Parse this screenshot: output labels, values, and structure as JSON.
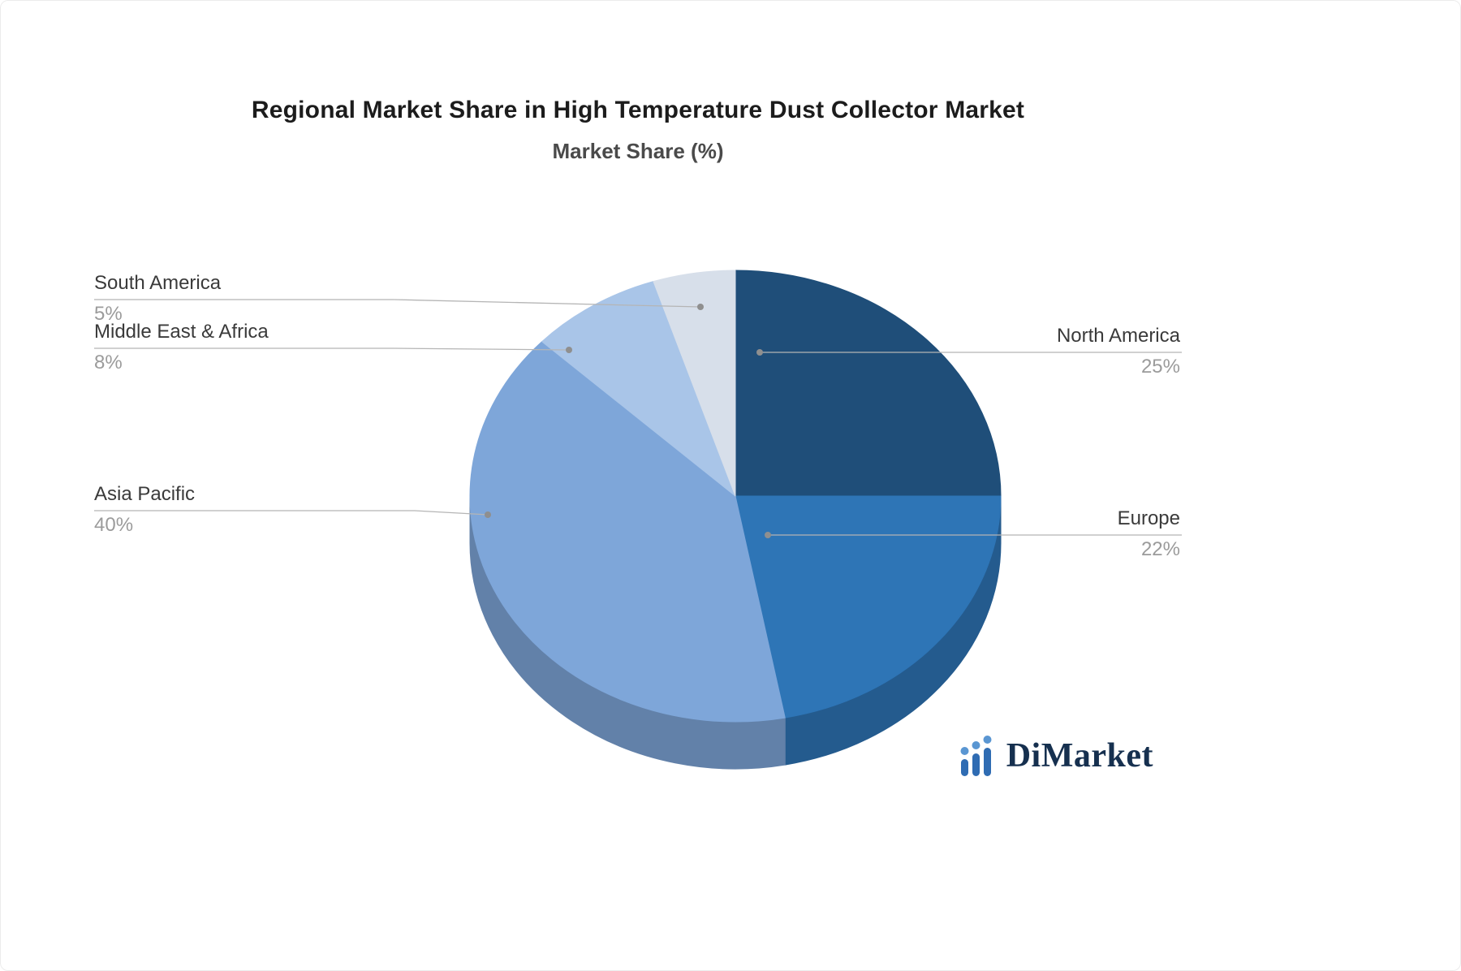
{
  "header": {
    "title": "Regional Market Share in High Temperature Dust Collector Market",
    "subtitle": "Market Share (%)"
  },
  "brand": {
    "name": "DiMarket",
    "icon": "bar-chart-logo-icon",
    "icon_color": "#2f6cb3",
    "text_color": "#16304f"
  },
  "chart_data": {
    "type": "pie",
    "style": "3d",
    "title": "Regional Market Share in High Temperature Dust Collector Market",
    "subtitle": "Market Share (%)",
    "unit": "%",
    "direction": "clockwise",
    "start_angle_deg": 0,
    "legend_position": "callout-labels",
    "series": [
      {
        "name": "North America",
        "value": 25,
        "label": "25%",
        "color": "#1F4E79"
      },
      {
        "name": "Europe",
        "value": 22,
        "label": "22%",
        "color": "#2E75B6"
      },
      {
        "name": "Asia Pacific",
        "value": 40,
        "label": "40%",
        "color": "#7EA6D9"
      },
      {
        "name": "Middle East & Africa",
        "value": 8,
        "label": "8%",
        "color": "#A9C5E8"
      },
      {
        "name": "South America",
        "value": 5,
        "label": "5%",
        "color": "#D7DFEA"
      }
    ],
    "callout_line_color": "#b5b5b5",
    "callout_dot_color": "#8f8f8f"
  }
}
